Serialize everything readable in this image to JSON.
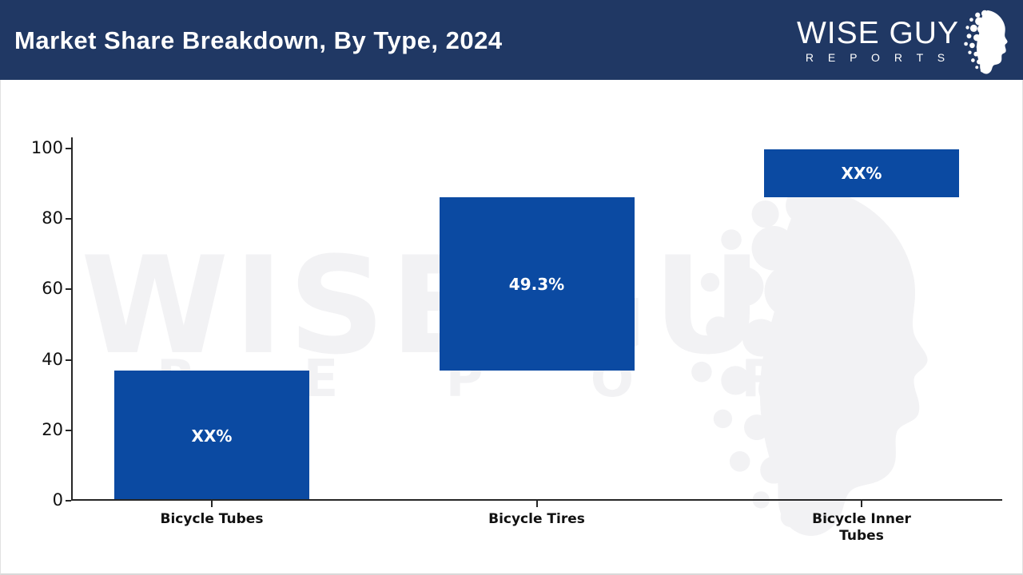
{
  "header": {
    "title": "Market Share Breakdown, By Type, 2024",
    "logo": {
      "brand_line1": "WISE GUY",
      "brand_line2": "R E P O R T S"
    }
  },
  "watermark": {
    "text_main": "WISE GUY",
    "text_sub": "R E P O R T S"
  },
  "chart_data": {
    "type": "bar",
    "variant": "floating-stacked-segments (waterfall-style market share)",
    "title": "Market Share Breakdown, By Type, 2024",
    "categories": [
      "Bicycle Tubes",
      "Bicycle Tires",
      "Bicycle Inner Tubes"
    ],
    "segments": [
      {
        "category": "Bicycle Tubes",
        "from": 0,
        "to": 36.9,
        "label": "XX%"
      },
      {
        "category": "Bicycle Tires",
        "from": 36.9,
        "to": 86.2,
        "label": "49.3%"
      },
      {
        "category": "Bicycle Inner Tubes",
        "from": 86.2,
        "to": 99.8,
        "label": "XX%"
      }
    ],
    "xlabel": "",
    "ylabel": "",
    "yticks": [
      0,
      20,
      40,
      60,
      80,
      100
    ],
    "ylim": [
      0,
      103.2
    ],
    "grid": {
      "horizontal": true,
      "style": "dashed"
    },
    "legend": "none",
    "bar_color": "#0b4aa2",
    "bar_label_color": "#ffffff"
  },
  "colors": {
    "header_bg": "#203864",
    "bar": "#0b4aa2",
    "grid": "#d6d6d6",
    "axis": "#262626",
    "text": "#111111",
    "watermark": "#f2f2f4",
    "border": "#d9d9d9"
  }
}
